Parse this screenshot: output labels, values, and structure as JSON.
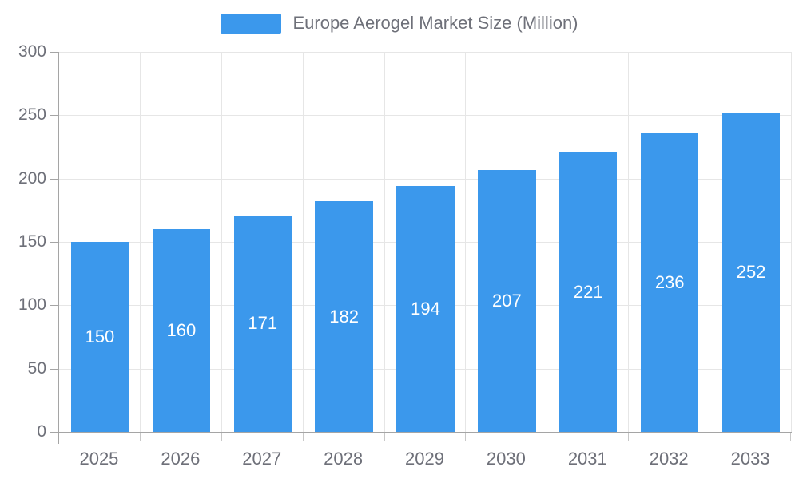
{
  "legend": {
    "label": "Europe Aerogel Market Size (Million)"
  },
  "chart_data": {
    "type": "bar",
    "title": "Europe Aerogel Market Size (Million)",
    "categories": [
      "2025",
      "2026",
      "2027",
      "2028",
      "2029",
      "2030",
      "2031",
      "2032",
      "2033"
    ],
    "values": [
      150,
      160,
      171,
      182,
      194,
      207,
      221,
      236,
      252
    ],
    "value_labels": [
      "150",
      "160",
      "171",
      "182",
      "194",
      "207",
      "221",
      "236",
      "252"
    ],
    "xlabel": "",
    "ylabel": "",
    "ylim": [
      0,
      300
    ],
    "yticks": [
      0,
      50,
      100,
      150,
      200,
      250,
      300
    ],
    "grid": true,
    "legend_position": "top-center",
    "bar_label_position": "inside-center"
  },
  "colors": {
    "bar": "#3B98EC",
    "bar_value_text": "#FFFFFF",
    "axis_line": "#A5A5A5",
    "gridline": "#E6E6E6",
    "axis_text": "#6E7079",
    "legend_text": "#6E7079",
    "background": "#FFFFFF"
  }
}
